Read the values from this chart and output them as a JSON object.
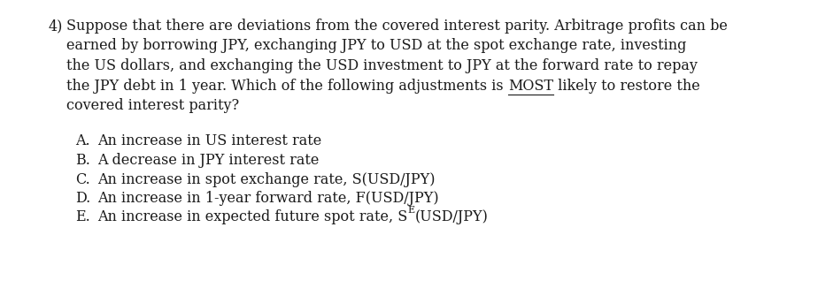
{
  "background_color": "#ffffff",
  "question_number": "4)",
  "question_text_lines": [
    "Suppose that there are deviations from the covered interest parity. Arbitrage profits can be",
    "earned by borrowing JPY, exchanging JPY to USD at the spot exchange rate, investing",
    "the US dollars, and exchanging the USD investment to JPY at the forward rate to repay",
    "the JPY debt in 1 year. Which of the following adjustments is MOST likely to restore the",
    "covered interest parity?"
  ],
  "most_word": "MOST",
  "choices": [
    {
      "label": "A.",
      "text": "An increase in US interest rate"
    },
    {
      "label": "B.",
      "text": "A decrease in JPY interest rate"
    },
    {
      "label": "C.",
      "text": "An increase in spot exchange rate, S(USD/JPY)"
    },
    {
      "label": "D.",
      "text": "An increase in 1-year forward rate, F(USD/JPY)"
    },
    {
      "label": "E.",
      "text": "An increase in expected future spot rate, Sᴱ(USD/JPY)"
    }
  ],
  "font_size": 11.5,
  "font_family": "serif",
  "text_color": "#1a1a1a",
  "fig_width": 9.24,
  "fig_height": 3.26,
  "dpi": 100
}
